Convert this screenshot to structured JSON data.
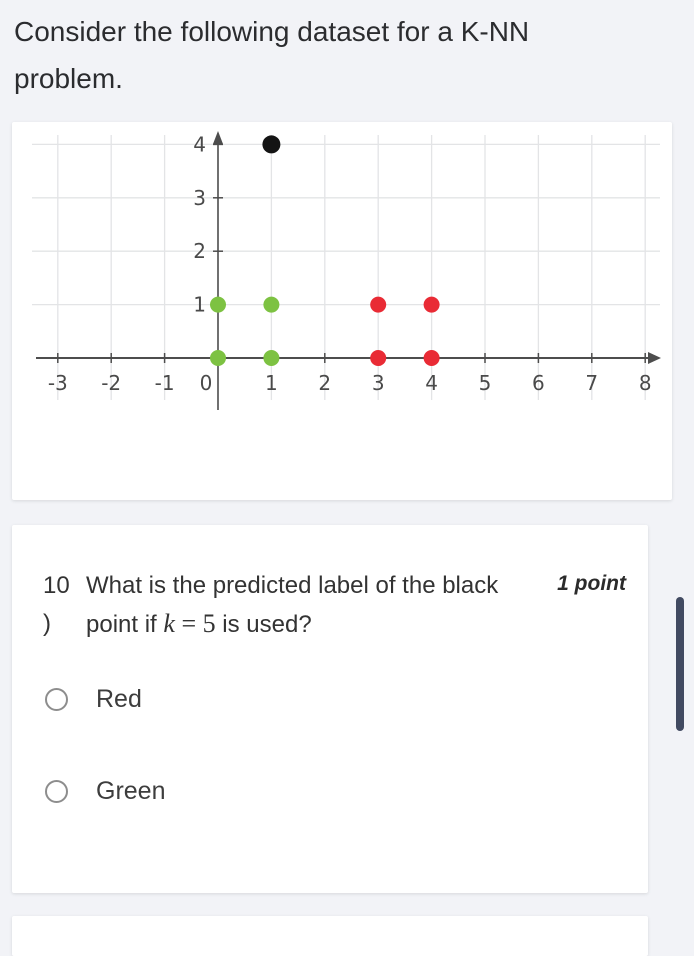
{
  "title": "Consider the following dataset for a K-NN problem.",
  "question": {
    "number": "10",
    "paren": ")",
    "line1": "What is the predicted label of the black",
    "line2_prefix": "point if ",
    "math_var": "k",
    "math_eq": " = 5",
    "line2_suffix": " is used?",
    "points_badge": "1 point",
    "options": [
      {
        "label": "Red"
      },
      {
        "label": "Green"
      }
    ]
  },
  "chart_data": {
    "type": "scatter",
    "title": "",
    "xlabel": "",
    "ylabel": "",
    "xlim": [
      -3.5,
      8.3
    ],
    "ylim": [
      -1,
      4.4
    ],
    "grid": true,
    "legend": "none",
    "x_ticks": [
      -3,
      -2,
      -1,
      0,
      1,
      2,
      3,
      4,
      5,
      6,
      7,
      8
    ],
    "y_ticks": [
      1,
      2,
      3,
      4
    ],
    "series": [
      {
        "name": "black point (query)",
        "color": "#141414",
        "radius": 9,
        "points": [
          [
            1,
            4
          ]
        ]
      },
      {
        "name": "green class",
        "color": "#7dc242",
        "radius": 8,
        "points": [
          [
            0,
            1
          ],
          [
            1,
            1
          ],
          [
            0,
            0
          ],
          [
            1,
            0
          ]
        ]
      },
      {
        "name": "red class",
        "color": "#e92b35",
        "radius": 8,
        "points": [
          [
            3,
            1
          ],
          [
            4,
            1
          ],
          [
            3,
            0
          ],
          [
            4,
            0
          ]
        ]
      }
    ],
    "colors": {
      "grid": "#e3e4e6",
      "axis": "#4d4d4d",
      "tick_label": "#4a4a4a"
    }
  }
}
